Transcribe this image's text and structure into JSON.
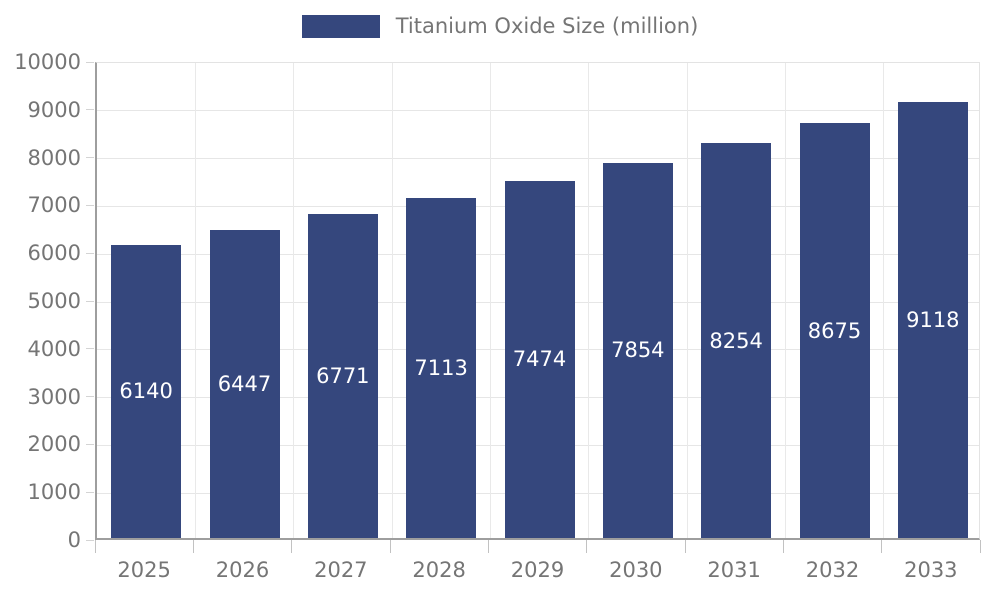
{
  "legend": {
    "label": "Titanium Oxide Size (million)",
    "swatch_color": "#35477d"
  },
  "chart_data": {
    "type": "bar",
    "title": "",
    "series_name": "Titanium Oxide Size (million)",
    "categories": [
      "2025",
      "2026",
      "2027",
      "2028",
      "2029",
      "2030",
      "2031",
      "2032",
      "2033"
    ],
    "values": [
      6140,
      6447,
      6771,
      7113,
      7474,
      7854,
      8254,
      8675,
      9118
    ],
    "xlabel": "",
    "ylabel": "",
    "ylim": [
      0,
      10000
    ],
    "ytick_step": 1000,
    "ytick_labels": [
      "0",
      "1000",
      "2000",
      "3000",
      "4000",
      "5000",
      "6000",
      "7000",
      "8000",
      "9000",
      "10000"
    ],
    "grid": true,
    "legend_position": "top-center",
    "bar_color": "#35477d",
    "bar_label_color": "#ffffff",
    "axis_text_color": "#757575",
    "grid_color": "#e6e6e6",
    "axis_line_color": "#9e9e9e"
  }
}
